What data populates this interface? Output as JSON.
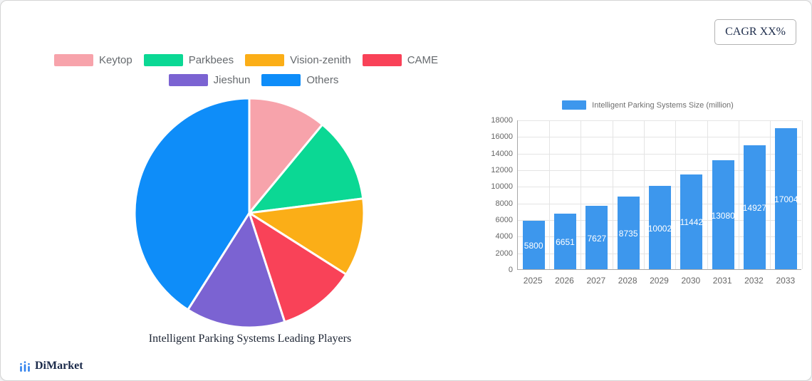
{
  "cagr_badge": {
    "label": "CAGR XX%"
  },
  "brand": {
    "name": "DiMarket"
  },
  "chart_data": [
    {
      "type": "pie",
      "title": "Intelligent Parking Systems Leading Players",
      "categories": [
        "Keytop",
        "Parkbees",
        "Vision-zenith",
        "CAME",
        "Jieshun",
        "Others"
      ],
      "values": [
        11,
        12,
        11,
        11,
        14,
        41
      ],
      "unit": "percent",
      "colors": [
        "#F7A3AB",
        "#0BD894",
        "#FBAE17",
        "#F94258",
        "#7B63D2",
        "#0E8DF9"
      ],
      "legend_rows": [
        [
          "Keytop",
          "Parkbees",
          "Vision-zenith",
          "CAME"
        ],
        [
          "Jieshun",
          "Others"
        ]
      ],
      "legend_position": "top",
      "start_angle_deg": 0,
      "direction": "clockwise"
    },
    {
      "type": "bar",
      "legend": "Intelligent Parking Systems Size (million)",
      "categories": [
        "2025",
        "2026",
        "2027",
        "2028",
        "2029",
        "2030",
        "2031",
        "2032",
        "2033"
      ],
      "values": [
        5800,
        6651,
        7627,
        8735,
        10002,
        11442,
        13080,
        14927,
        17004
      ],
      "ylim": [
        0,
        18000
      ],
      "ytick_step": 2000,
      "bar_color": "#3D97ED",
      "grid": true,
      "value_labels": "inside-center-white",
      "legend_position": "top"
    }
  ]
}
